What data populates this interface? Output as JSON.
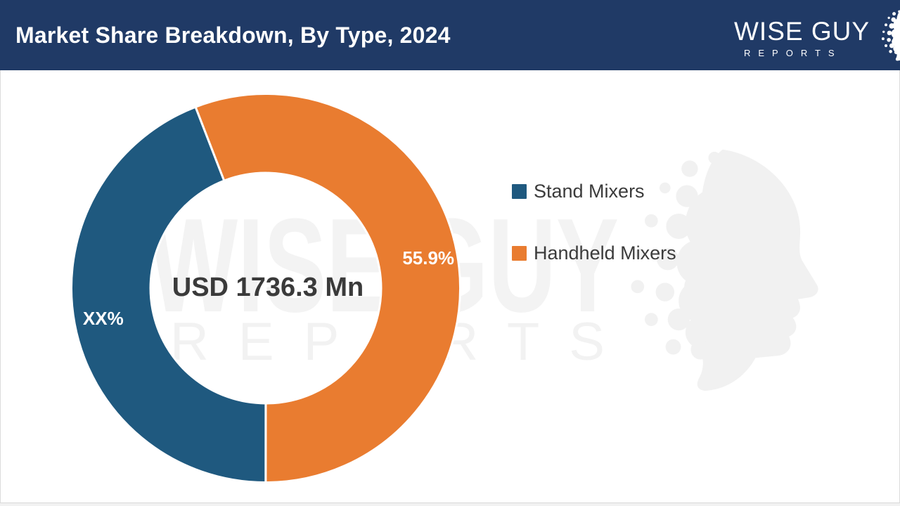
{
  "header": {
    "title": "Market Share Breakdown, By Type, 2024",
    "logo": {
      "brand_top": "WISE GUY",
      "brand_bottom": "REPORTS"
    }
  },
  "watermark": {
    "line1": "WISE GUY",
    "line2": "REPORTS"
  },
  "legend": {
    "position": "right",
    "items": [
      {
        "label": "Stand Mixers",
        "color": "#1f597f"
      },
      {
        "label": "Handheld Mixers",
        "color": "#e97c30"
      }
    ]
  },
  "chart_data": {
    "type": "pie",
    "subtype": "donut",
    "title": "Market Share Breakdown, By Type, 2024",
    "center_label": "USD 1736.3 Mn",
    "unit": "percent",
    "rotation_deg": -21.2,
    "hole_ratio": 0.593,
    "legend_position": "right",
    "segments": [
      {
        "name": "Handheld Mixers",
        "value": 55.9,
        "label": "55.9%",
        "color": "#e97c30"
      },
      {
        "name": "Stand Mixers",
        "value": 44.1,
        "label": "XX%",
        "color": "#1f597f"
      }
    ]
  },
  "colors": {
    "header_bg": "#203a66",
    "blue": "#1f597f",
    "orange": "#e97c30",
    "text_dark": "#3a3a3a",
    "watermark": "#f3f3f3"
  }
}
